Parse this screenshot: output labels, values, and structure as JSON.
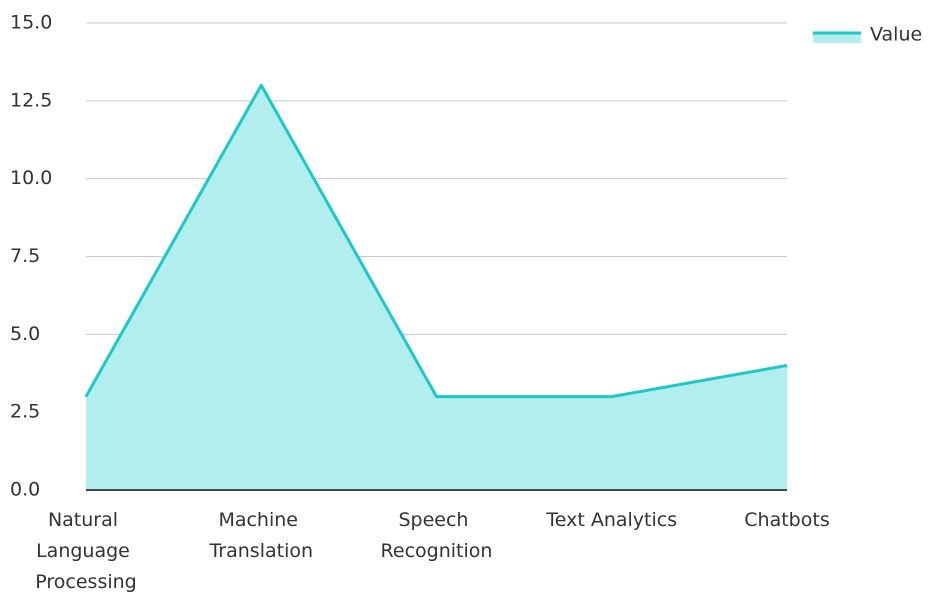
{
  "chart_data": {
    "type": "area",
    "categories": [
      "Natural Language Processing",
      "Machine Translation",
      "Speech Recognition",
      "Text Analytics",
      "Chatbots"
    ],
    "series": [
      {
        "name": "Value",
        "color": "#1ec8c8",
        "fill": "#b2eeee",
        "values": [
          3,
          13,
          3,
          3,
          4
        ]
      }
    ],
    "ylim": [
      0,
      15
    ],
    "yticks": [
      {
        "value": 0,
        "label": "0.0"
      },
      2.5,
      {
        "value": 5,
        "label": "5.0"
      },
      7.5,
      {
        "value": 10,
        "label": "10.0"
      },
      12.5,
      {
        "value": 15,
        "label": "15.0"
      }
    ],
    "grid": true,
    "legend": "top-right"
  }
}
